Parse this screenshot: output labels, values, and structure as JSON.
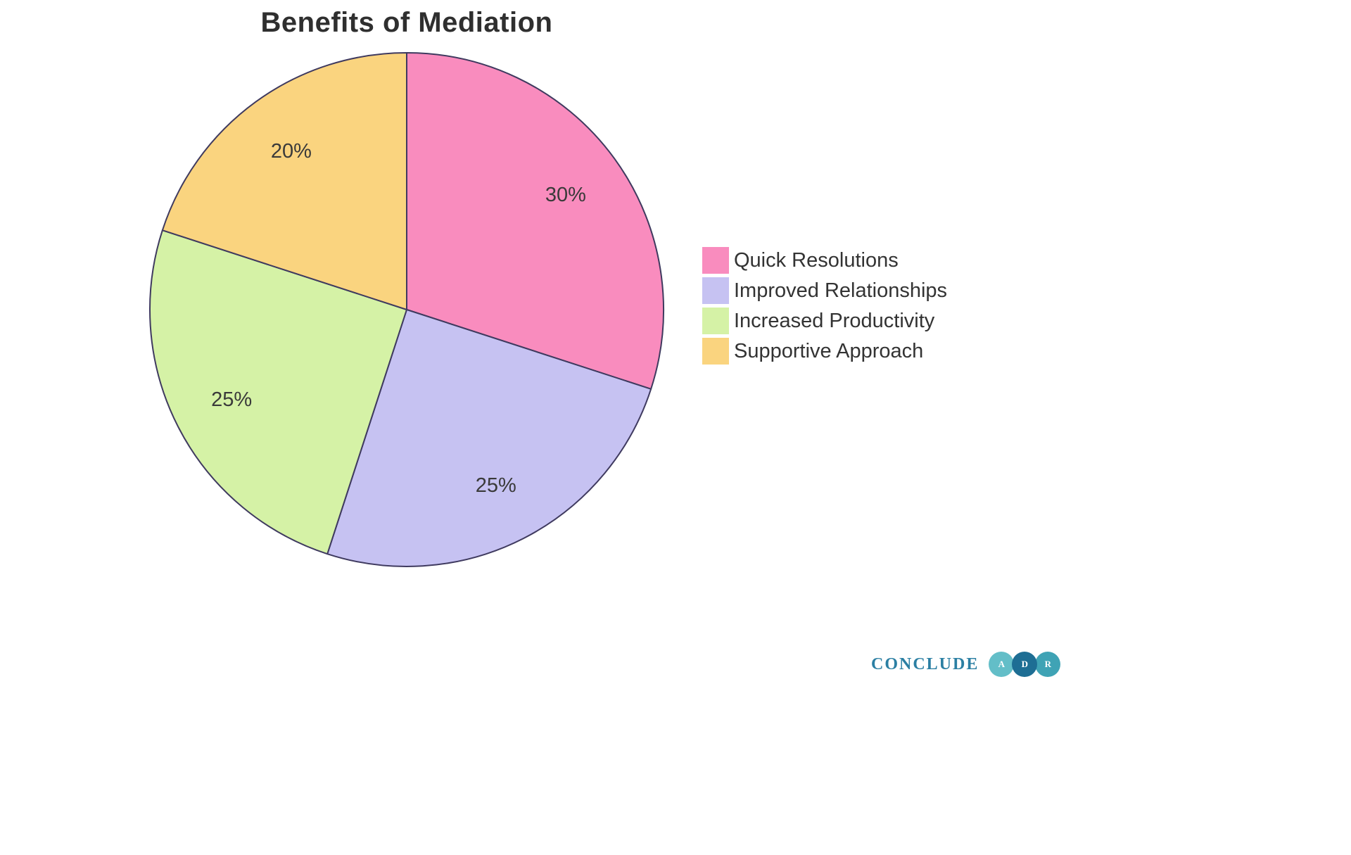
{
  "chart_data": {
    "type": "pie",
    "title": "Benefits of Mediation",
    "slices": [
      {
        "label": "Quick Resolutions",
        "value": 30,
        "pct_label": "30%",
        "color": "#F98CBE"
      },
      {
        "label": "Improved Relationships",
        "value": 25,
        "pct_label": "25%",
        "color": "#C6C2F2"
      },
      {
        "label": "Increased Productivity",
        "value": 25,
        "pct_label": "25%",
        "color": "#D5F2A6"
      },
      {
        "label": "Supportive Approach",
        "value": 20,
        "pct_label": "20%",
        "color": "#FAD47F"
      }
    ],
    "start_angle_deg": 0,
    "direction": "clockwise",
    "stroke_color": "#3F3A5F",
    "legend_position": "right",
    "labels_position": "inside"
  },
  "branding": {
    "wordmark": "CONCLUDE",
    "wordmark_color": "#2B7FA3",
    "badges": [
      {
        "letter": "A",
        "color": "#63BEC8"
      },
      {
        "letter": "D",
        "color": "#1E6E94"
      },
      {
        "letter": "R",
        "color": "#3FA3B5"
      }
    ]
  }
}
